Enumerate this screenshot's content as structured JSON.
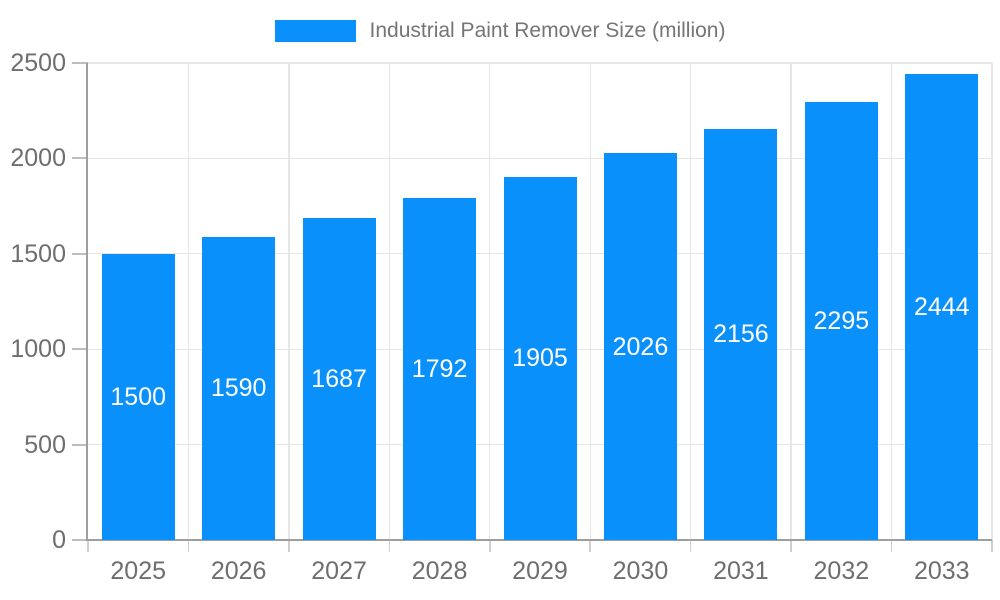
{
  "legend": {
    "label": "Industrial Paint Remover Size (million)"
  },
  "colors": {
    "bar": "#0990fb",
    "grid": "#e6e6e6",
    "axis": "#9e9e9e",
    "tick_label": "#6e6e6e",
    "legend_text": "#757575",
    "data_label": "#ffffff",
    "background": "#ffffff"
  },
  "chart_data": {
    "type": "bar",
    "title": "",
    "xlabel": "",
    "ylabel": "",
    "categories": [
      "2025",
      "2026",
      "2027",
      "2028",
      "2029",
      "2030",
      "2031",
      "2032",
      "2033"
    ],
    "series": [
      {
        "name": "Industrial Paint Remover Size (million)",
        "values": [
          1500,
          1590,
          1687,
          1792,
          1905,
          2026,
          2156,
          2295,
          2444
        ]
      }
    ],
    "ylim": [
      0,
      2500
    ],
    "yticks": [
      0,
      500,
      1000,
      1500,
      2000,
      2500
    ],
    "grid": true,
    "legend_position": "top",
    "data_labels": "inside-center"
  }
}
